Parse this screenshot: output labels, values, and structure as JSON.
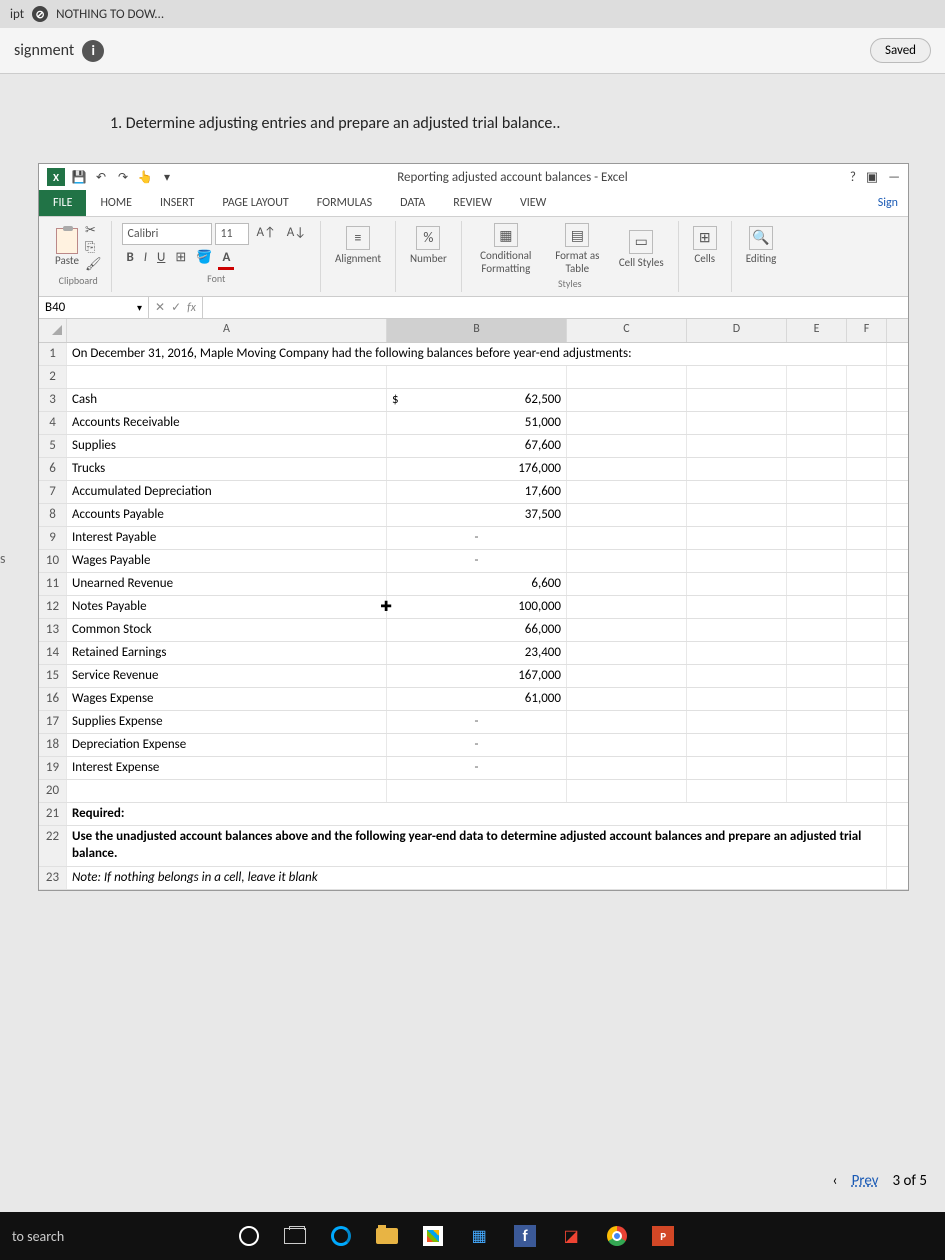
{
  "browser": {
    "tab_prefix": "ipt",
    "tab_title": "NOTHING TO DOW..."
  },
  "assignment": {
    "label": "signment",
    "saved": "Saved"
  },
  "question": {
    "number": "1.",
    "text": "Determine adjusting entries and prepare an adjusted trial balance.."
  },
  "excel": {
    "title": "Reporting adjusted account balances - Excel",
    "signin": "Sign",
    "tabs": {
      "file": "FILE",
      "home": "HOME",
      "insert": "INSERT",
      "pagelayout": "PAGE LAYOUT",
      "formulas": "FORMULAS",
      "data": "DATA",
      "review": "REVIEW",
      "view": "VIEW"
    },
    "ribbon": {
      "paste": "Paste",
      "clipboard": "Clipboard",
      "font_name": "Calibri",
      "font_size": "11",
      "font_label": "Font",
      "alignment": "Alignment",
      "number": "Number",
      "cond_fmt": "Conditional Formatting",
      "fmt_table": "Format as Table",
      "cell_styles": "Cell Styles",
      "styles": "Styles",
      "cells": "Cells",
      "editing": "Editing"
    },
    "namebox": "B40",
    "fx": "fx",
    "columns": {
      "a": "A",
      "b": "B",
      "c": "C",
      "d": "D",
      "e": "E",
      "f": "F"
    }
  },
  "sheet": {
    "row1": "On December 31, 2016, Maple Moving Company had the following balances before year-end adjustments:",
    "data": [
      {
        "r": "3",
        "a": "Cash",
        "b": "62,500",
        "dollar": true
      },
      {
        "r": "4",
        "a": "Accounts Receivable",
        "b": "51,000"
      },
      {
        "r": "5",
        "a": "Supplies",
        "b": "67,600"
      },
      {
        "r": "6",
        "a": "Trucks",
        "b": "176,000"
      },
      {
        "r": "7",
        "a": "Accumulated Depreciation",
        "b": "17,600"
      },
      {
        "r": "8",
        "a": "Accounts Payable",
        "b": "37,500"
      },
      {
        "r": "9",
        "a": "Interest Payable",
        "b": "-"
      },
      {
        "r": "10",
        "a": "Wages Payable",
        "b": "-"
      },
      {
        "r": "11",
        "a": "Unearned Revenue",
        "b": "6,600"
      },
      {
        "r": "12",
        "a": "Notes Payable",
        "b": "100,000",
        "cursor": true
      },
      {
        "r": "13",
        "a": "Common Stock",
        "b": "66,000"
      },
      {
        "r": "14",
        "a": "Retained Earnings",
        "b": "23,400"
      },
      {
        "r": "15",
        "a": "Service Revenue",
        "b": "167,000"
      },
      {
        "r": "16",
        "a": "Wages Expense",
        "b": "61,000"
      },
      {
        "r": "17",
        "a": "Supplies Expense",
        "b": "-"
      },
      {
        "r": "18",
        "a": "Depreciation Expense",
        "b": "-"
      },
      {
        "r": "19",
        "a": "Interest Expense",
        "b": "-"
      }
    ],
    "row21": "Required:",
    "row22": "Use the unadjusted account balances above and the following year-end data to determine adjusted account balances and prepare an adjusted trial balance.",
    "row23": "Note: If nothing belongs in a cell, leave it blank"
  },
  "pager": {
    "prev": "Prev",
    "pos": "3 of 5"
  },
  "taskbar": {
    "search": "to search"
  },
  "side": "s",
  "colors": {
    "excel_green": "#217346",
    "link_blue": "#1a5ab5"
  }
}
